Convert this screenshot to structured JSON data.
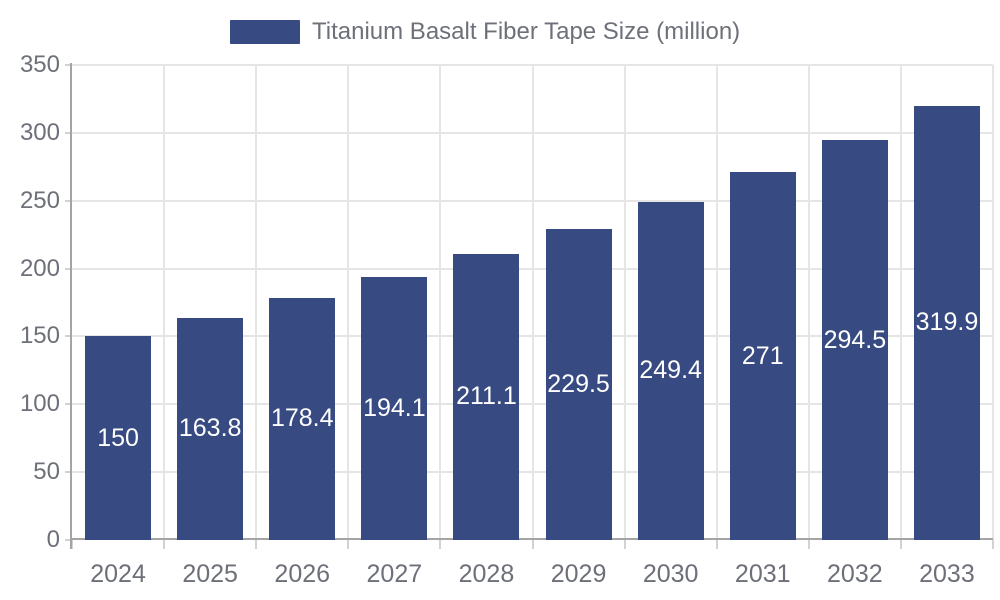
{
  "chart_data": {
    "type": "bar",
    "title": "Titanium Basalt Fiber Tape Size (million)",
    "series_name": "Titanium Basalt Fiber Tape Size (million)",
    "categories": [
      "2024",
      "2025",
      "2026",
      "2027",
      "2028",
      "2029",
      "2030",
      "2031",
      "2032",
      "2033"
    ],
    "values": [
      150,
      163.8,
      178.4,
      194.1,
      211.1,
      229.5,
      249.4,
      271,
      294.5,
      319.9
    ],
    "value_labels": [
      "150",
      "163.8",
      "178.4",
      "194.1",
      "211.1",
      "229.5",
      "249.4",
      "271",
      "294.5",
      "319.9"
    ],
    "xlabel": "",
    "ylabel": "",
    "ylim": [
      0,
      350
    ],
    "ytick_step": 50,
    "ytick_labels": [
      "0",
      "50",
      "100",
      "150",
      "200",
      "250",
      "300",
      "350"
    ],
    "grid": true,
    "legend_position": "top",
    "colors": {
      "bar": "#374A81",
      "bar_label": "#FFFFFF",
      "grid_line": "#E5E5E5",
      "axis_line": "#A4A4A4",
      "tick_mark": "#D2D2D2",
      "axis_label": "#6E7079",
      "title_text": "#6E7079",
      "background": "#FFFFFF"
    }
  }
}
